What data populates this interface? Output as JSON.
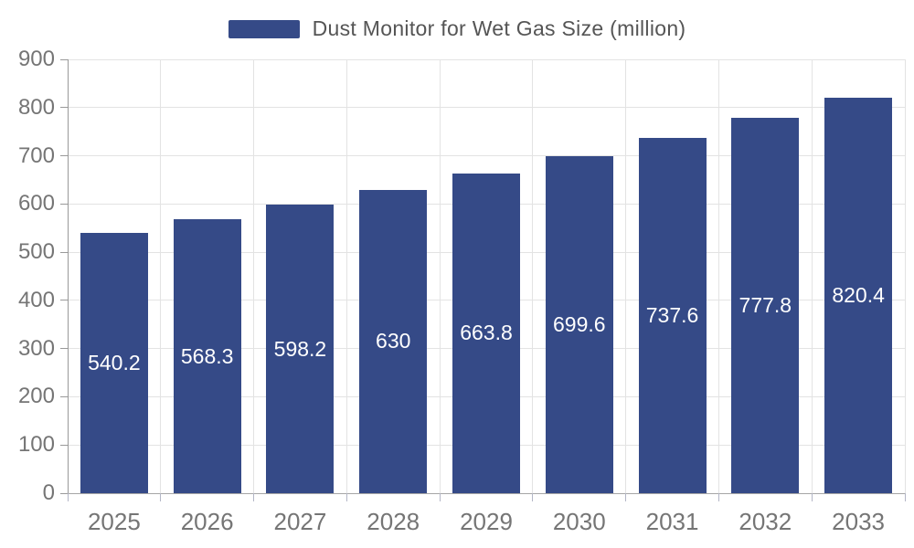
{
  "legend": {
    "label": "Dust Monitor for Wet Gas Size (million)"
  },
  "colors": {
    "bar": "#354a87",
    "axis_line": "#999999",
    "gridline": "#e3e3e3",
    "tick": "#b3b6c6",
    "axis_text": "#757575",
    "legend_text": "#555555",
    "value_label": "#ffffff"
  },
  "chart_data": {
    "type": "bar",
    "title": "Dust Monitor for Wet Gas Size (million)",
    "categories": [
      "2025",
      "2026",
      "2027",
      "2028",
      "2029",
      "2030",
      "2031",
      "2032",
      "2033"
    ],
    "values": [
      540.2,
      568.3,
      598.2,
      630,
      663.8,
      699.6,
      737.6,
      777.8,
      820.4
    ],
    "value_labels": [
      "540.2",
      "568.3",
      "598.2",
      "630",
      "663.8",
      "699.6",
      "737.6",
      "777.8",
      "820.4"
    ],
    "xlabel": "",
    "ylabel": "",
    "ylim": [
      0,
      900
    ],
    "ytick_step": 100,
    "grid": true,
    "legend_position": "top-center",
    "value_label_position": "inside-center"
  }
}
